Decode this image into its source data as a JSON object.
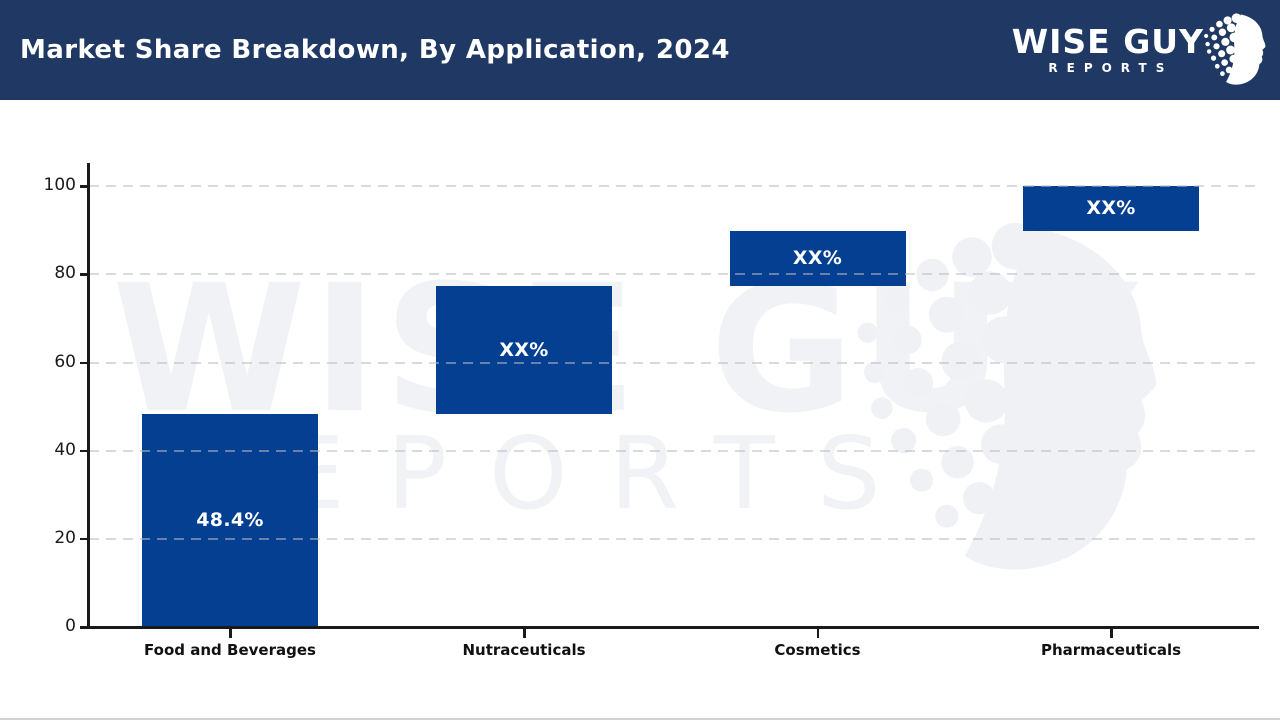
{
  "header": {
    "title": "Market Share Breakdown, By Application, 2024",
    "bg_color": "#1f3864",
    "text_color": "#ffffff",
    "logo": {
      "line1": "WISE GUY",
      "line2": "REPORTS"
    }
  },
  "watermark": {
    "line1": "WISE GUY",
    "line2": "REPORTS"
  },
  "chart_data": {
    "type": "bar",
    "subtype": "waterfall-floating-bars",
    "title": "Market Share Breakdown, By Application, 2024",
    "categories": [
      "Food and Beverages",
      "Nutraceuticals",
      "Cosmetics",
      "Pharmaceuticals"
    ],
    "bars": [
      {
        "category": "Food and Beverages",
        "start": 0,
        "end": 48.4,
        "label": "48.4%"
      },
      {
        "category": "Nutraceuticals",
        "start": 48.4,
        "end": 77.3,
        "label": "XX%"
      },
      {
        "category": "Cosmetics",
        "start": 77.3,
        "end": 89.9,
        "label": "XX%"
      },
      {
        "category": "Pharmaceuticals",
        "start": 89.9,
        "end": 100.0,
        "label": "XX%"
      }
    ],
    "xlabel": "",
    "ylabel": "",
    "ylim": [
      0,
      105
    ],
    "yticks": [
      0,
      20,
      40,
      60,
      80,
      100
    ],
    "grid": true,
    "grid_style": "dashed",
    "legend_position": "none",
    "bar_color": "#043f92",
    "bar_label_color": "#ffffff",
    "axis_color": "#1a1a1a"
  }
}
